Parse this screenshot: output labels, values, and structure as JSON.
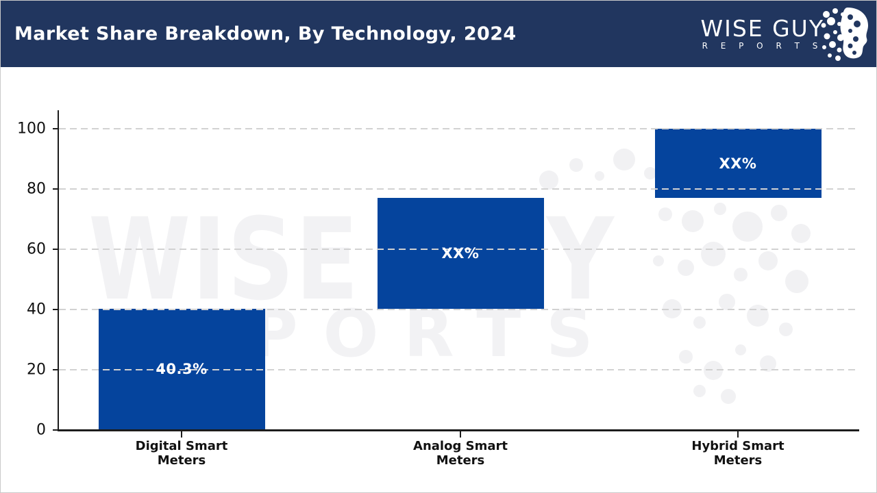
{
  "header": {
    "title": "Market Share Breakdown, By Technology, 2024",
    "logo": {
      "wordmark": "WISE GUY",
      "subtext": "R E P O R T S"
    }
  },
  "watermark": {
    "wordmark": "WISE GUY",
    "subtext": "REPORTS"
  },
  "chart_data": {
    "type": "bar",
    "subtype": "waterfall",
    "title": "Market Share Breakdown, By Technology, 2024",
    "categories": [
      "Digital Smart\nMeters",
      "Analog Smart\nMeters",
      "Hybrid Smart\nMeters"
    ],
    "segments": [
      {
        "category": "Digital Smart Meters",
        "start": 0,
        "end": 40.3,
        "label": "40.3%"
      },
      {
        "category": "Analog Smart Meters",
        "start": 40.3,
        "end": 77,
        "label": "XX%"
      },
      {
        "category": "Hybrid Smart Meters",
        "start": 77,
        "end": 100,
        "label": "XX%"
      }
    ],
    "xlabel": "",
    "ylabel": "",
    "ylim": [
      0,
      100
    ],
    "yticks": [
      0,
      20,
      40,
      60,
      80,
      100
    ],
    "grid": "horizontal-dashed",
    "legend": "none",
    "bar_color": "#05449d",
    "bar_label_color": "#ffffff",
    "axis_color": "#1c1c1c",
    "gridline_color": "#d2d2d2",
    "header_color": "#21365f"
  }
}
